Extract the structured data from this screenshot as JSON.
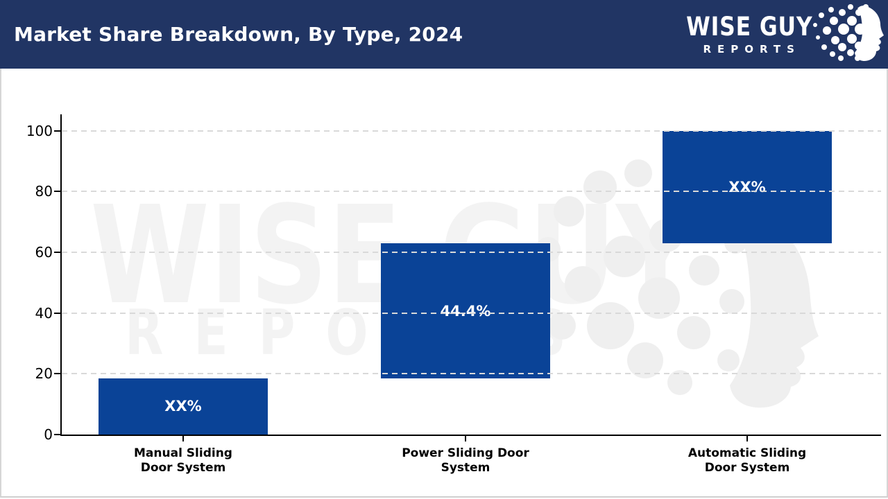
{
  "header": {
    "title": "Market Share Breakdown, By Type, 2024",
    "logo": {
      "wordmark": "WISE GUY",
      "subtext": "REPORTS",
      "face_icon": "dotted-face-profile-icon"
    }
  },
  "watermark": {
    "wordmark": "WISE GUY",
    "subtext": "REPORTS",
    "face_icon": "dotted-face-profile-watermark"
  },
  "chart_data": {
    "type": "bar",
    "subtype": "floating_waterfall_segments",
    "title": "Market Share Breakdown, By Type, 2024",
    "categories": [
      [
        "Manual Sliding",
        "Door System"
      ],
      [
        "Power Sliding Door",
        "System"
      ],
      [
        "Automatic Sliding",
        "Door System"
      ]
    ],
    "series": [
      {
        "name": "Market share by type (%)",
        "segments": [
          {
            "category": "Manual Sliding Door System",
            "from": 0,
            "to": 18.5,
            "label": "XX%"
          },
          {
            "category": "Power Sliding Door System",
            "from": 18.5,
            "to": 62.9,
            "label": "44.4%"
          },
          {
            "category": "Automatic Sliding Door System",
            "from": 62.9,
            "to": 100,
            "label": "XX%"
          }
        ]
      }
    ],
    "yticks": [
      0,
      20,
      40,
      60,
      80,
      100
    ],
    "ylim": [
      0,
      105
    ],
    "xlabel": "",
    "ylabel": "",
    "legend": "none",
    "grid": {
      "axis": "y",
      "style": "dashed",
      "color": "#d9d9d9",
      "on_top_of_bars": true
    },
    "bar_color": "#0a4397",
    "bar_label_color": "#ffffff",
    "axis_color": "#000000"
  },
  "colors": {
    "header_bg": "#213564",
    "card_border": "#d6d6d6",
    "watermark": "#f3f3f3",
    "logo_text": "#ffffff"
  }
}
